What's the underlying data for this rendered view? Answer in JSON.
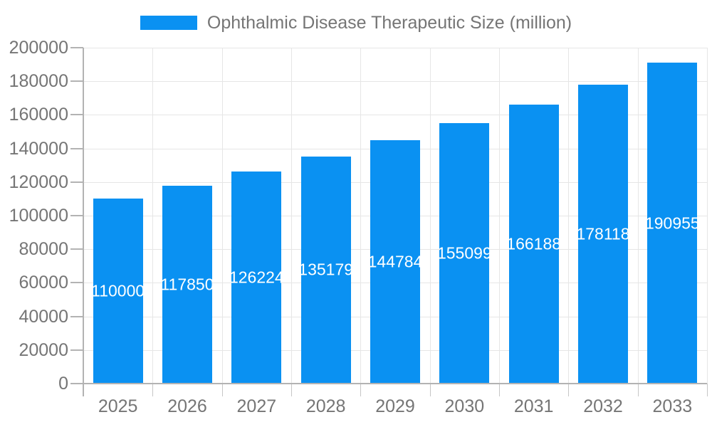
{
  "chart": {
    "legend": {
      "label": "Ophthalmic Disease Therapeutic Size (million)",
      "swatch_color": "#0a91f2"
    }
  },
  "chart_data": {
    "type": "bar",
    "title": "Ophthalmic Disease Therapeutic Size (million)",
    "categories": [
      "2025",
      "2026",
      "2027",
      "2028",
      "2029",
      "2030",
      "2031",
      "2032",
      "2033"
    ],
    "series": [
      {
        "name": "Ophthalmic Disease Therapeutic Size (million)",
        "color": "#0a91f2",
        "values": [
          110000,
          117850,
          126224,
          135179,
          144784,
          155099,
          166188,
          178118,
          190955
        ]
      }
    ],
    "bar_labels": [
      "110000",
      "117850",
      "126224",
      "135179",
      "144784",
      "155099",
      "166188",
      "178118",
      "190955"
    ],
    "xlabel": "",
    "ylabel": "",
    "ylim": [
      0,
      200000
    ],
    "ytick_step": 20000,
    "ytick_labels": [
      "0",
      "20000",
      "40000",
      "60000",
      "80000",
      "100000",
      "120000",
      "140000",
      "160000",
      "180000",
      "200000"
    ],
    "grid": true,
    "legend_position": "top",
    "annotations_inside_bars": true,
    "colors": {
      "bar": "#0a91f2",
      "axis_text": "#757575",
      "gridline": "#e6e6e6",
      "axis_line": "#b3b3b3",
      "tick": "#c6c6c6",
      "annotation_text": "#ffffff"
    }
  }
}
